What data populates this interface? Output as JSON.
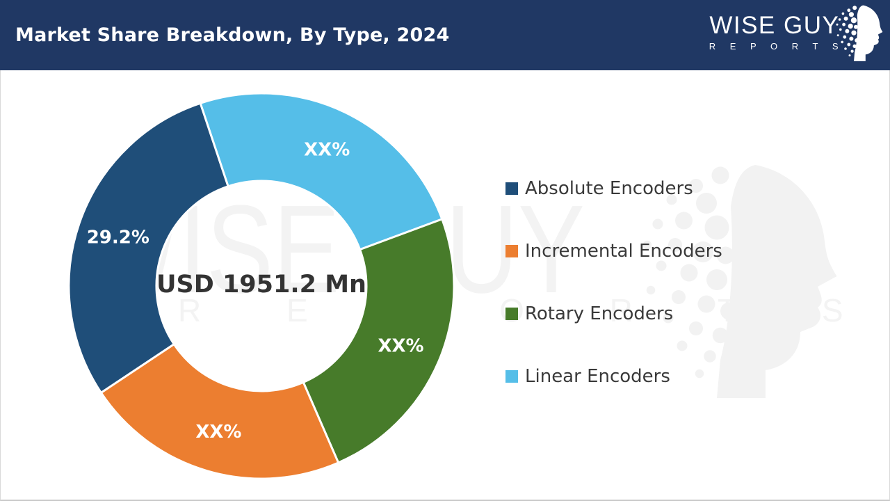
{
  "header": {
    "title": "Market Share Breakdown, By Type, 2024",
    "bg_color": "#203864",
    "logo": {
      "name": "WISE GUY",
      "tagline": "R E P O R T S"
    }
  },
  "watermark": {
    "brand": "WISE GUY",
    "tagline": "R E P O R T S"
  },
  "chart_data": {
    "type": "pie",
    "subtype": "donut",
    "title": "Market Share Breakdown, By Type, 2024",
    "center_label": "USD 1951.2 Mn",
    "value_unit": "percent of market share",
    "start_angle_deg_clockwise_from_top": -18.5,
    "draw_order_clockwise": [
      "Linear Encoders",
      "Rotary Encoders",
      "Incremental Encoders",
      "Absolute Encoders"
    ],
    "legend_position": "right",
    "slice_label_color": "#ffffff",
    "separator_color": "#ffffff",
    "outer_radius_px": 277,
    "inner_radius_px": 151,
    "segments": [
      {
        "name": "Absolute Encoders",
        "label": "29.2%",
        "share_pct": 29.2,
        "color": "#1f4e79"
      },
      {
        "name": "Incremental Encoders",
        "label": "XX%",
        "share_pct": 22.2,
        "color": "#ec7e30"
      },
      {
        "name": "Rotary Encoders",
        "label": "XX%",
        "share_pct": 24.1,
        "color": "#477b2a"
      },
      {
        "name": "Linear Encoders",
        "label": "XX%",
        "share_pct": 24.5,
        "color": "#55bee8"
      }
    ]
  }
}
